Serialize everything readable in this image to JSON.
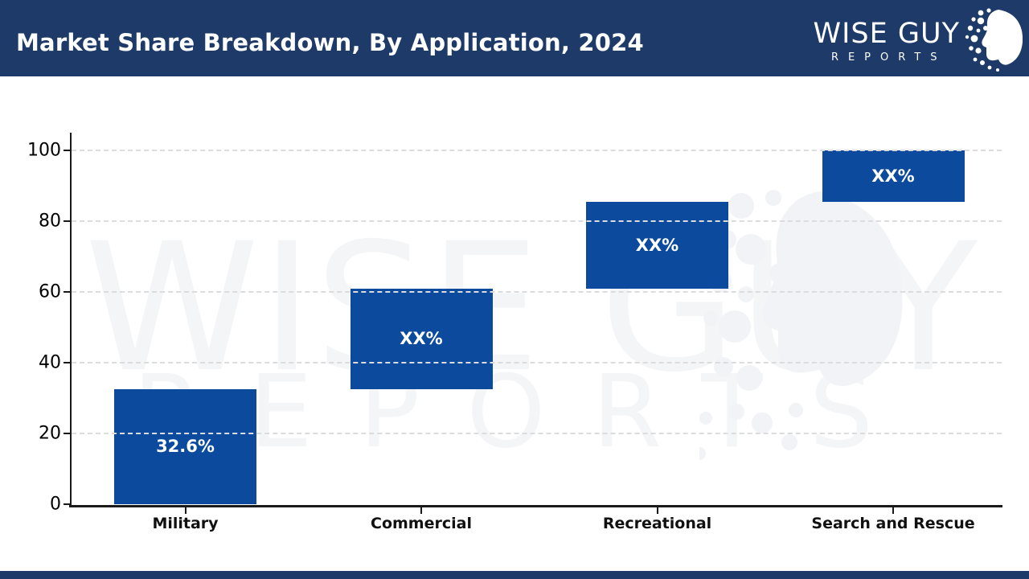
{
  "header": {
    "title": "Market Share Breakdown, By Application, 2024",
    "logo": {
      "name": "WISE GUY",
      "subtitle": "REPORTS"
    }
  },
  "watermark": {
    "line1": "WISE GUY",
    "line2": "REPORTS"
  },
  "chart_data": {
    "type": "bar",
    "subtype": "waterfall",
    "title": "Market Share Breakdown, By Application, 2024",
    "categories": [
      "Military",
      "Commercial",
      "Recreational",
      "Search and Rescue"
    ],
    "bars": [
      {
        "category": "Military",
        "start": 0,
        "end": 32.6,
        "label": "32.6%"
      },
      {
        "category": "Commercial",
        "start": 32.6,
        "end": 61,
        "label": "XX%"
      },
      {
        "category": "Recreational",
        "start": 61,
        "end": 85.5,
        "label": "XX%"
      },
      {
        "category": "Search and Rescue",
        "start": 85.5,
        "end": 100,
        "label": "XX%"
      }
    ],
    "ylim": [
      0,
      100
    ],
    "yticks": [
      0,
      20,
      40,
      60,
      80,
      100
    ],
    "xlabel": "",
    "ylabel": "",
    "grid": "horizontal-dashed",
    "legend": "none",
    "colors": {
      "bar": "#0c4a9e",
      "bar_label": "#ffffff",
      "grid": "#dcdcdc",
      "axis": "#1a1a1a",
      "header_bg": "#1e3a68",
      "watermark": "#f4f5f7"
    }
  }
}
